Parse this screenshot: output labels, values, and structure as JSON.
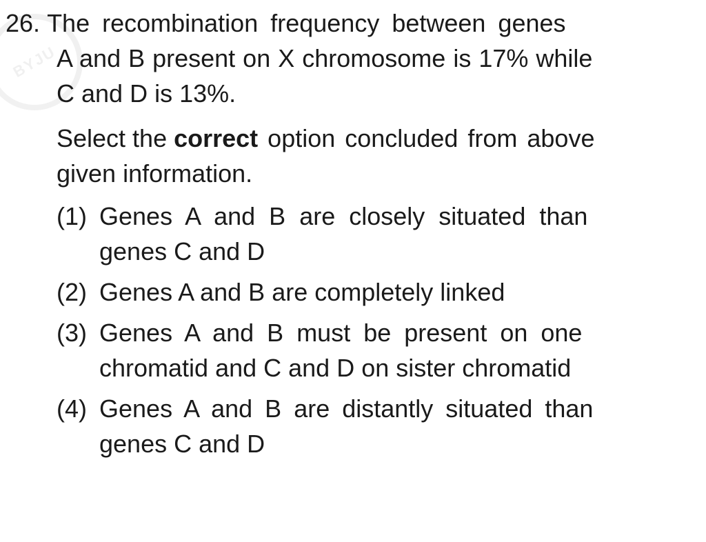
{
  "watermark": {
    "text": "BYJU"
  },
  "question": {
    "number": "26.",
    "stem_line1": "The recombination frequency between genes",
    "stem_line2": "A and B present on X chromosome is 17% while",
    "stem_line3": "C and D is 13%.",
    "prompt_part1": "Select the ",
    "prompt_bold": "correct",
    "prompt_part2": " option concluded from above",
    "prompt_line2": "given information."
  },
  "options": [
    {
      "num": "(1)",
      "line1": "Genes A and B are closely situated than",
      "line2": "genes C and D"
    },
    {
      "num": "(2)",
      "line1": "Genes A and B are completely linked",
      "line2": ""
    },
    {
      "num": "(3)",
      "line1": "Genes A and B must be present on one",
      "line2": "chromatid and C and D on sister chromatid"
    },
    {
      "num": "(4)",
      "line1": "Genes A and B are distantly situated than",
      "line2": "genes C and D"
    }
  ],
  "style": {
    "fontsize_main": 36,
    "text_color": "#1a1a1a",
    "bg_color": "#ffffff",
    "watermark_color": "#888888",
    "watermark_opacity": 0.12
  }
}
